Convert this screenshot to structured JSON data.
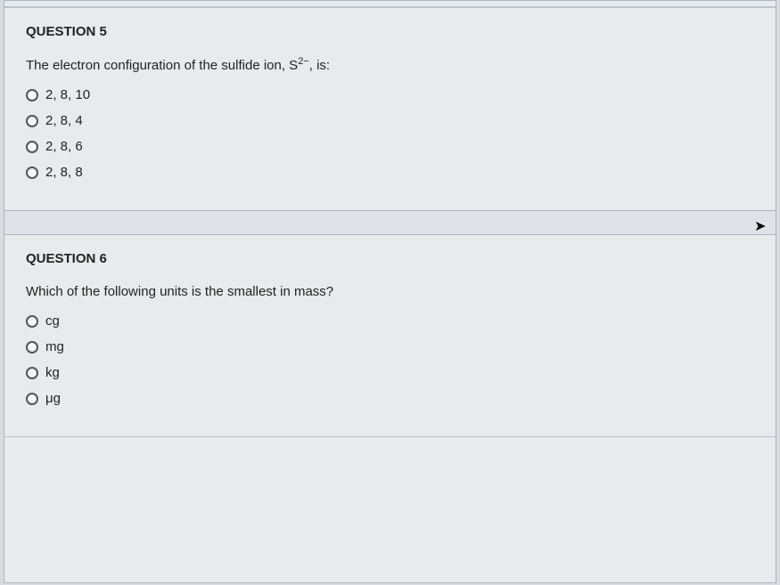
{
  "q5": {
    "heading": "QUESTION 5",
    "prompt_a": "The electron configuration of the sulfide ion, S",
    "prompt_sup": "2−",
    "prompt_b": ", is:",
    "options": [
      "2, 8, 10",
      "2, 8, 4",
      "2, 8, 6",
      "2, 8, 8"
    ]
  },
  "q6": {
    "heading": "QUESTION 6",
    "prompt": "Which of the following units is the smallest in mass?",
    "options": [
      "cg",
      "mg",
      "kg",
      "μg"
    ]
  },
  "colors": {
    "page_bg": "#d8dce0",
    "panel_bg": "#e8ebed",
    "border": "#b0b5ba",
    "text": "#222222",
    "radio_border": "#555555"
  }
}
